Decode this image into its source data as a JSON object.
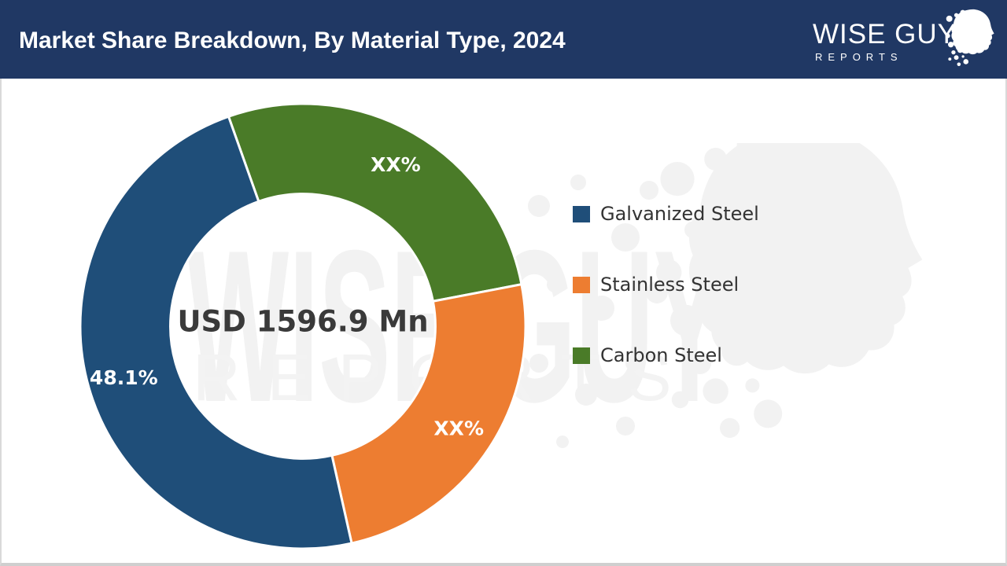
{
  "header": {
    "title": "Market Share Breakdown, By Material Type, 2024",
    "logo": {
      "brand": "WISE GUY",
      "sub": "REPORTS"
    }
  },
  "watermark": {
    "brand": "WISE GUY",
    "sub": "REPORTS"
  },
  "chart_data": {
    "type": "pie",
    "subtype": "donut",
    "title": "Market Share Breakdown, By Material Type, 2024",
    "center_label": "USD 1596.9 Mn",
    "units": "percent",
    "start_angle_deg_clockwise_from_top": 340.5,
    "inner_radius_ratio": 0.595,
    "legend_position": "right",
    "segments": [
      {
        "name": "Carbon Steel",
        "value_pct": 27.4,
        "label": "XX%",
        "color": "#4a7b28"
      },
      {
        "name": "Stainless Steel",
        "value_pct": 24.5,
        "label": "XX%",
        "color": "#ed7d31"
      },
      {
        "name": "Galvanized Steel",
        "value_pct": 48.1,
        "label": "48.1%",
        "color": "#1f4e79"
      }
    ],
    "legend": [
      {
        "label": "Galvanized Steel",
        "color": "#1f4e79"
      },
      {
        "label": "Stainless Steel",
        "color": "#ed7d31"
      },
      {
        "label": "Carbon Steel",
        "color": "#4a7b28"
      }
    ]
  },
  "colors": {
    "header_bg": "#203864",
    "header_text": "#ffffff",
    "watermark": "#f2f2f2",
    "center_text": "#3a3a3a",
    "legend_text": "#333333",
    "segment_border": "#ffffff"
  }
}
